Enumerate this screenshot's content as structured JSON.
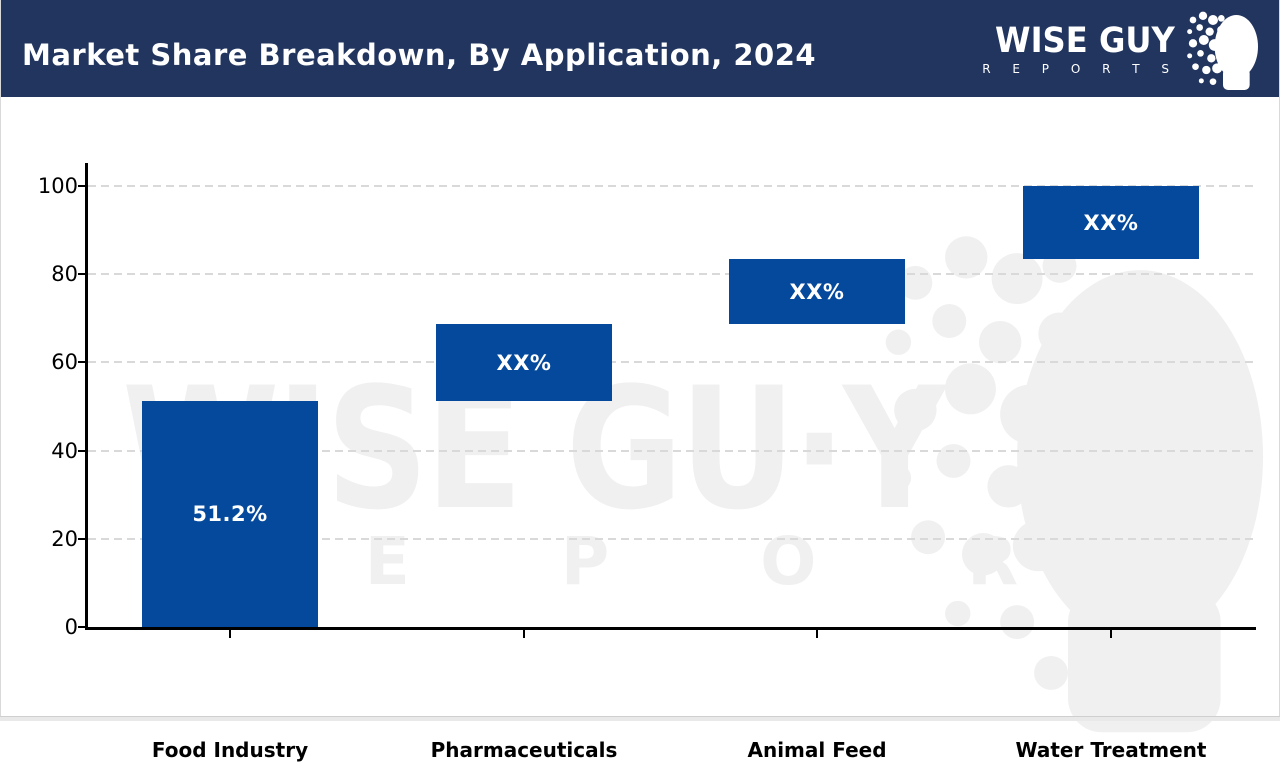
{
  "header": {
    "title": "Market Share Breakdown, By Application, 2024",
    "background_color": "#21355F",
    "logo": {
      "line1": "WISE GUY",
      "line2": "R E P O R T S",
      "head_icon": "dotted-face-profile"
    }
  },
  "watermark": {
    "line1": "WISE GU·Y",
    "line2": "R E P O R T S",
    "head_icon": "dotted-face-profile",
    "color": "#f0f0f0"
  },
  "chart_data": {
    "type": "bar",
    "subtype": "waterfall",
    "title": "Market Share Breakdown, By Application, 2024",
    "categories": [
      "Food Industry",
      "Pharmaceuticals",
      "Animal Feed",
      "Water Treatment"
    ],
    "series": [
      {
        "name": "Market Share",
        "ranges": [
          [
            0,
            51.2
          ],
          [
            51.2,
            68.7
          ],
          [
            68.7,
            83.4
          ],
          [
            83.4,
            100
          ]
        ],
        "labels": [
          "51.2%",
          "XX%",
          "XX%",
          "XX%"
        ]
      }
    ],
    "xlabel": "",
    "ylabel": "",
    "ylim": [
      0,
      100
    ],
    "yticks": [
      0,
      20,
      40,
      60,
      80,
      100
    ],
    "grid": "horizontal-dashed",
    "legend": "none",
    "bar_color": "#05499C",
    "bar_label_color": "#FFFFFF",
    "axis_color": "#000000",
    "gridline_color": "#D9D9D9"
  }
}
